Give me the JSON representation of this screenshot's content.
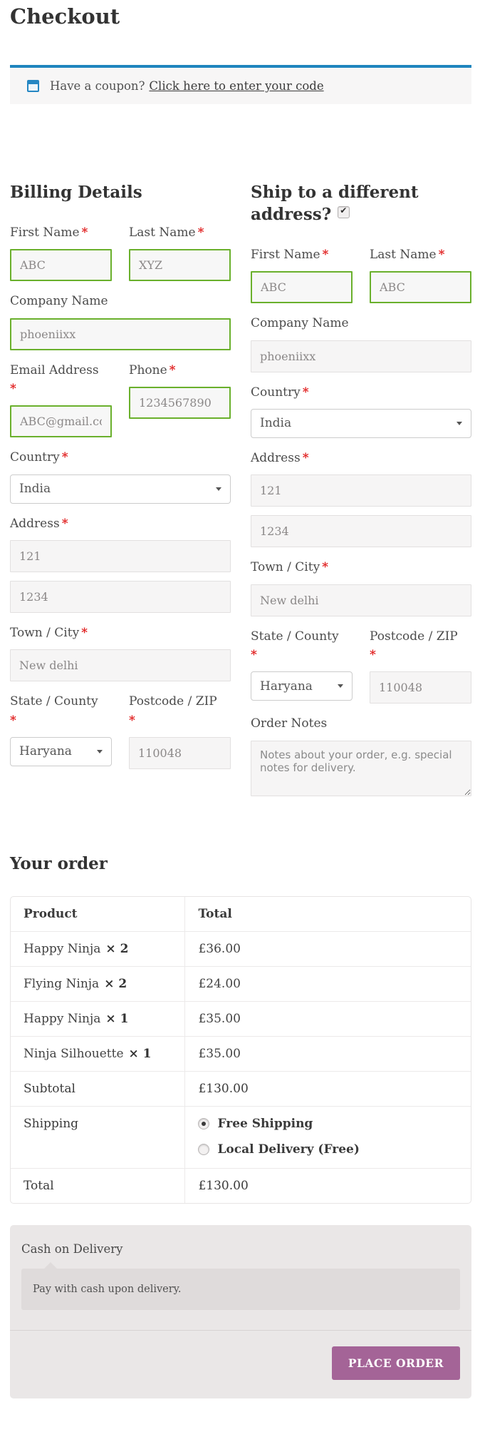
{
  "misc": {
    "required": "*"
  },
  "page": {
    "title": "Checkout"
  },
  "coupon": {
    "text": "Have a coupon?",
    "link": "Click here to enter your code",
    "icon": "window-icon"
  },
  "billing": {
    "heading": "Billing Details",
    "first_name": {
      "label": "First Name",
      "value": "ABC"
    },
    "last_name": {
      "label": "Last Name",
      "value": "XYZ"
    },
    "company": {
      "label": "Company Name",
      "value": "phoeniixx"
    },
    "email": {
      "label": "Email Address",
      "value": "ABC@gmail.com"
    },
    "phone": {
      "label": "Phone",
      "value": "1234567890"
    },
    "country": {
      "label": "Country",
      "value": "India"
    },
    "address": {
      "label": "Address",
      "line1": "121",
      "line2": "1234"
    },
    "town": {
      "label": "Town / City",
      "value": "New delhi"
    },
    "state": {
      "label": "State / County",
      "value": "Haryana"
    },
    "postcode": {
      "label": "Postcode / ZIP",
      "value": "110048"
    }
  },
  "shipping": {
    "heading": "Ship to a different address?",
    "checkbox_checked": true,
    "first_name": {
      "label": "First Name",
      "value": "ABC"
    },
    "last_name": {
      "label": "Last Name",
      "value": "ABC"
    },
    "company": {
      "label": "Company Name",
      "value": "phoeniixx"
    },
    "country": {
      "label": "Country",
      "value": "India"
    },
    "address": {
      "label": "Address",
      "line1": "121",
      "line2": "1234"
    },
    "town": {
      "label": "Town / City",
      "value": "New delhi"
    },
    "state": {
      "label": "State / County",
      "value": "Haryana"
    },
    "postcode": {
      "label": "Postcode / ZIP",
      "value": "110048"
    },
    "order_notes": {
      "label": "Order Notes",
      "placeholder": "Notes about your order, e.g. special notes for delivery."
    }
  },
  "order": {
    "heading": "Your order",
    "columns": {
      "product": "Product",
      "total": "Total"
    },
    "items": [
      {
        "name": "Happy Ninja",
        "qty": "× 2",
        "total": "£36.00"
      },
      {
        "name": "Flying Ninja",
        "qty": "× 2",
        "total": "£24.00"
      },
      {
        "name": "Happy Ninja",
        "qty": "× 1",
        "total": "£35.00"
      },
      {
        "name": "Ninja Silhouette",
        "qty": "× 1",
        "total": "£35.00"
      }
    ],
    "subtotal": {
      "label": "Subtotal",
      "value": "£130.00"
    },
    "shipping_row": {
      "label": "Shipping",
      "options": [
        {
          "label": "Free Shipping",
          "selected": true
        },
        {
          "label": "Local Delivery (Free)",
          "selected": false
        }
      ]
    },
    "total": {
      "label": "Total",
      "value": "£130.00"
    }
  },
  "payment": {
    "method": "Cash on Delivery",
    "note": "Pay with cash upon delivery.",
    "button": "PLACE ORDER"
  },
  "colors": {
    "accent_blue": "#1e85be",
    "valid_green": "#6ab02c",
    "button_purple": "#a46497",
    "required_red": "#e01c1c"
  }
}
